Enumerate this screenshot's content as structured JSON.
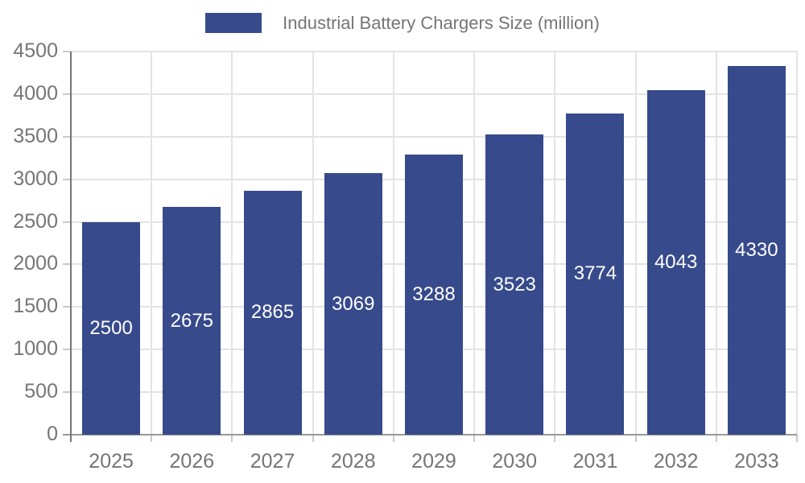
{
  "legend": {
    "label": "Industrial Battery Chargers Size (million)"
  },
  "chart_data": {
    "type": "bar",
    "title": "",
    "series_name": "Industrial Battery Chargers Size (million)",
    "categories": [
      "2025",
      "2026",
      "2027",
      "2028",
      "2029",
      "2030",
      "2031",
      "2032",
      "2033"
    ],
    "values": [
      2500,
      2675,
      2865,
      3069,
      3288,
      3523,
      3774,
      4043,
      4330
    ],
    "xlabel": "",
    "ylabel": "",
    "ylim": [
      0,
      4500
    ],
    "yticks": [
      0,
      500,
      1000,
      1500,
      2000,
      2500,
      3000,
      3500,
      4000,
      4500
    ],
    "grid": true,
    "legend_position": "top",
    "value_labels": "inside-center"
  },
  "colors": {
    "bar": "#374A8B",
    "bar_label": "#FFFFFF",
    "axis_text": "#757575",
    "legend_text": "#757575",
    "grid": "#E3E3E3",
    "y_axis_line": "#757575",
    "x_axis_line": "#999999",
    "tick": "#C9C9C9",
    "background": "#FFFFFF"
  }
}
